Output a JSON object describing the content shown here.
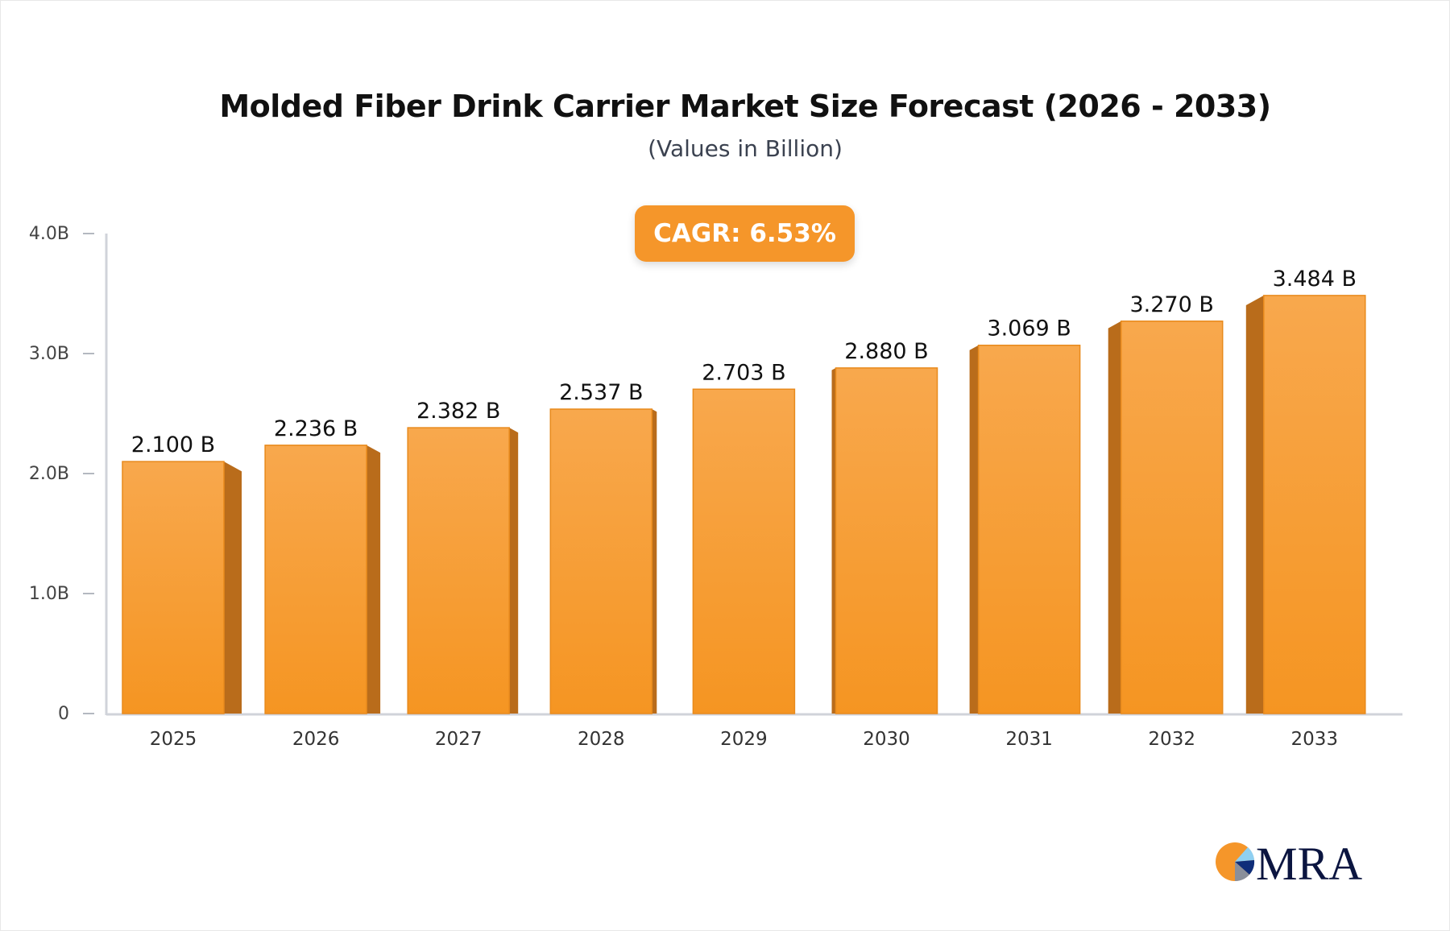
{
  "chart_data": {
    "type": "bar",
    "title": "Molded Fiber Drink Carrier Market Size Forecast (2026 - 2033)",
    "subtitle": "(Values in Billion)",
    "annotation": "CAGR: 6.53%",
    "categories": [
      "2025",
      "2026",
      "2027",
      "2028",
      "2029",
      "2030",
      "2031",
      "2032",
      "2033"
    ],
    "values": [
      2.1,
      2.236,
      2.382,
      2.537,
      2.703,
      2.88,
      3.069,
      3.27,
      3.484
    ],
    "data_labels": [
      "2.100 B",
      "2.236 B",
      "2.382 B",
      "2.537 B",
      "2.703 B",
      "2.880 B",
      "3.069 B",
      "3.270 B",
      "3.484 B"
    ],
    "yticks": [
      0,
      1,
      2,
      3,
      4
    ],
    "ytick_labels": [
      "0",
      "1.0B",
      "2.0B",
      "3.0B",
      "4.0B"
    ],
    "ylim": [
      0,
      4
    ],
    "xlabel": "",
    "ylabel": "",
    "grid": false,
    "colors": {
      "bar_front": "#f7a445",
      "bar_bottom": "#f59522",
      "bar_side": "#b96c1b",
      "badge": "#f5962a",
      "axis": "#d0d3da"
    }
  },
  "logo": {
    "text": "MRA"
  }
}
